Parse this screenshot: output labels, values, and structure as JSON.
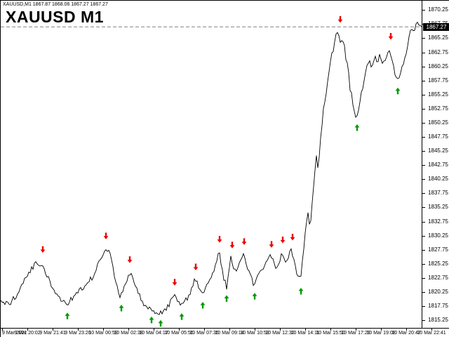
{
  "window": {
    "ohlc_line": "XAUUSD,M1 1867.87 1868.06 1867.27 1867.27",
    "watermark": "XAUUSD M1"
  },
  "colors": {
    "background": "#ffffff",
    "price_line": "#000000",
    "bid_line": "#808080",
    "sell_arrow": "#ee0000",
    "buy_arrow": "#009a00",
    "axis_text": "#000000",
    "price_tag_bg": "#000000",
    "price_tag_text": "#ffffff"
  },
  "chart_data": {
    "type": "line",
    "title": "XAUUSD M1",
    "symbol": "XAUUSD",
    "timeframe": "M1",
    "ohlc": {
      "open": 1867.87,
      "high": 1868.06,
      "low": 1867.27,
      "close": 1867.27
    },
    "current_price": 1867.27,
    "current_price_label": "1867.27",
    "y_axis": {
      "max": 1871.9,
      "min": 1813.9,
      "tick_step": 2.5,
      "tick_labels": [
        "1870.25",
        "1867.75",
        "1865.25",
        "1862.75",
        "1860.25",
        "1857.75",
        "1855.25",
        "1852.75",
        "1850.25",
        "1847.75",
        "1845.25",
        "1842.75",
        "1840.25",
        "1837.75",
        "1835.25",
        "1832.75",
        "1830.25",
        "1827.75",
        "1825.25",
        "1822.75",
        "1820.25",
        "1817.75",
        "1815.25"
      ]
    },
    "x_axis": {
      "labels": [
        "9 Mar 2021",
        "9 Mar 20:02",
        "9 Mar 21:41",
        "9 Mar 23:20",
        "10 Mar 00:59",
        "10 Mar 02:38",
        "10 Mar 04:17",
        "10 Mar 05:56",
        "10 Mar 07:35",
        "10 Mar 09:14",
        "10 Mar 10:53",
        "10 Mar 12:32",
        "10 Mar 14:11",
        "10 Mar 15:50",
        "10 Mar 17:29",
        "10 Mar 19:08",
        "10 Mar 20:47",
        "10 Mar 22:41"
      ]
    },
    "price_path_anchors": [
      [
        0,
        1818.8
      ],
      [
        12,
        1817.9
      ],
      [
        25,
        1820.2
      ],
      [
        40,
        1823.6
      ],
      [
        52,
        1825.6
      ],
      [
        62,
        1824.2
      ],
      [
        72,
        1821.6
      ],
      [
        84,
        1819.2
      ],
      [
        95,
        1818.0
      ],
      [
        106,
        1819.8
      ],
      [
        118,
        1821.2
      ],
      [
        130,
        1822.8
      ],
      [
        142,
        1825.8
      ],
      [
        150,
        1828.2
      ],
      [
        157,
        1827.0
      ],
      [
        163,
        1822.0
      ],
      [
        171,
        1819.4
      ],
      [
        179,
        1822.2
      ],
      [
        186,
        1823.9
      ],
      [
        194,
        1820.6
      ],
      [
        204,
        1818.3
      ],
      [
        214,
        1817.1
      ],
      [
        227,
        1816.5
      ],
      [
        238,
        1817.6
      ],
      [
        248,
        1819.9
      ],
      [
        257,
        1817.9
      ],
      [
        267,
        1819.2
      ],
      [
        277,
        1822.6
      ],
      [
        287,
        1819.9
      ],
      [
        296,
        1821.6
      ],
      [
        304,
        1824.2
      ],
      [
        311,
        1827.4
      ],
      [
        317,
        1823.2
      ],
      [
        322,
        1821.1
      ],
      [
        328,
        1826.4
      ],
      [
        334,
        1823.9
      ],
      [
        341,
        1825.3
      ],
      [
        347,
        1827.1
      ],
      [
        354,
        1823.6
      ],
      [
        361,
        1821.5
      ],
      [
        369,
        1823.4
      ],
      [
        377,
        1825.1
      ],
      [
        385,
        1826.6
      ],
      [
        393,
        1824.3
      ],
      [
        401,
        1827.3
      ],
      [
        407,
        1825.4
      ],
      [
        414,
        1827.9
      ],
      [
        421,
        1824.1
      ],
      [
        427,
        1822.4
      ],
      [
        432,
        1827.9
      ],
      [
        437,
        1834.2
      ],
      [
        441,
        1831.8
      ],
      [
        446,
        1838.5
      ],
      [
        450,
        1843.9
      ],
      [
        453,
        1841.6
      ],
      [
        457,
        1849.2
      ],
      [
        461,
        1853.4
      ],
      [
        465,
        1857.1
      ],
      [
        469,
        1860.2
      ],
      [
        473,
        1862.8
      ],
      [
        477,
        1864.9
      ],
      [
        481,
        1866.6
      ],
      [
        485,
        1863.9
      ],
      [
        489,
        1865.3
      ],
      [
        493,
        1861.2
      ],
      [
        497,
        1857.6
      ],
      [
        501,
        1853.9
      ],
      [
        505,
        1851.9
      ],
      [
        509,
        1851.4
      ],
      [
        513,
        1854.6
      ],
      [
        517,
        1857.2
      ],
      [
        521,
        1859.6
      ],
      [
        525,
        1861.4
      ],
      [
        529,
        1859.9
      ],
      [
        533,
        1861.9
      ],
      [
        537,
        1860.9
      ],
      [
        541,
        1862.4
      ],
      [
        545,
        1860.6
      ],
      [
        549,
        1861.9
      ],
      [
        553,
        1863.4
      ],
      [
        557,
        1862.1
      ],
      [
        561,
        1859.6
      ],
      [
        565,
        1857.9
      ],
      [
        569,
        1858.6
      ],
      [
        573,
        1860.4
      ],
      [
        577,
        1861.9
      ],
      [
        581,
        1864.4
      ],
      [
        585,
        1867.3
      ],
      [
        589,
        1866.4
      ],
      [
        593,
        1867.9
      ],
      [
        597,
        1867.1
      ],
      [
        600,
        1867.27
      ]
    ],
    "signals": {
      "sell": [
        [
          60,
          1827.2
        ],
        [
          150,
          1829.6
        ],
        [
          184,
          1825.4
        ],
        [
          248,
          1821.4
        ],
        [
          278,
          1824.1
        ],
        [
          312,
          1829.0
        ],
        [
          330,
          1828.0
        ],
        [
          347,
          1828.6
        ],
        [
          386,
          1828.1
        ],
        [
          402,
          1828.9
        ],
        [
          416,
          1829.4
        ],
        [
          484,
          1868.0
        ],
        [
          556,
          1865.0
        ]
      ],
      "buy": [
        [
          95,
          1816.6
        ],
        [
          172,
          1818.0
        ],
        [
          215,
          1815.9
        ],
        [
          228,
          1815.3
        ],
        [
          258,
          1816.5
        ],
        [
          288,
          1818.5
        ],
        [
          322,
          1819.7
        ],
        [
          362,
          1820.1
        ],
        [
          428,
          1821.0
        ],
        [
          508,
          1850.0
        ],
        [
          566,
          1856.5
        ]
      ]
    }
  }
}
